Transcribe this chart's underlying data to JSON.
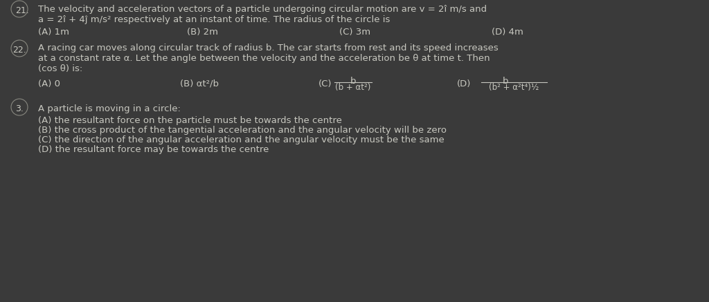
{
  "background_color": "#3a3a3a",
  "text_color": "#c8c8c0",
  "q21_number": "21.",
  "q21_line1": "The velocity and acceleration vectors of a particle undergoing circular motion are v = 2î m/s and",
  "q21_line2": "a = 2î + 4ĵ m/s² respectively at an instant of time. The radius of the circle is",
  "q21_options": [
    "(A) 1m",
    "(B) 2m",
    "(C) 3m",
    "(D) 4m"
  ],
  "q22_number": "22.",
  "q22_line1": "A racing car moves along circular track of radius b. The car starts from rest and its speed increases",
  "q22_line2": "at a constant rate α. Let the angle between the velocity and the acceleration be θ at time t. Then",
  "q22_line3": "(cos θ) is:",
  "q22_optA": "(A) 0",
  "q22_optB": "(B) αt²/b",
  "q22_optC_label": "(C)",
  "q22_optC_num": "b",
  "q22_optC_den": "(b + αt²)",
  "q22_optD_label": "(D)",
  "q22_optD_num": "b",
  "q22_optD_den": "(b² + α²t⁴)½",
  "q3_number": "3.",
  "q3_line1": "A particle is moving in a circle:",
  "q3_optA": "(A) the resultant force on the particle must be towards the centre",
  "q3_optB": "(B) the cross product of the tangential acceleration and the angular velocity will be zero",
  "q3_optC": "(C) the direction of the angular acceleration and the angular velocity must be the same",
  "q3_optD": "(D) the resultant force may be towards the centre",
  "font_size_main": 9.5,
  "font_size_small": 9.0,
  "circle_color": "#888880"
}
